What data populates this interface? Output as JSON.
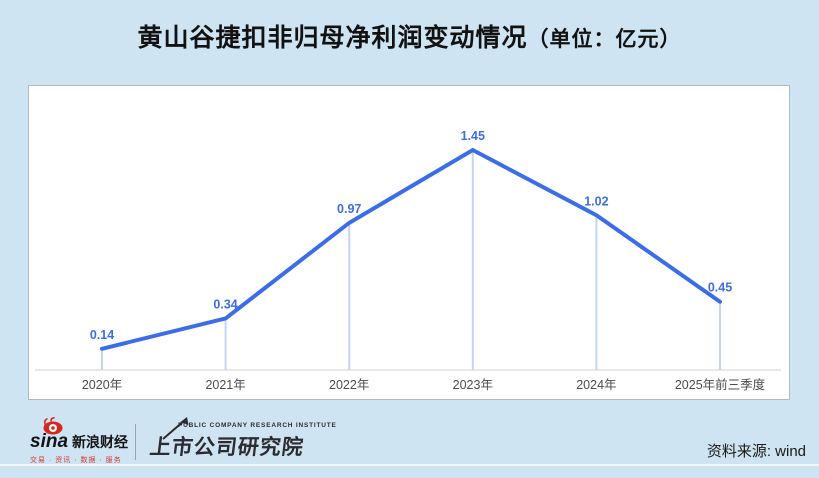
{
  "header": {
    "title_main": "黄山谷捷扣非归母净利润变动情况",
    "title_unit": "（单位：亿元）"
  },
  "chart_data": {
    "type": "line",
    "title": "黄山谷捷扣非归母净利润变动情况（单位：亿元）",
    "unit": "亿元",
    "categories": [
      "2020年",
      "2021年",
      "2022年",
      "2023年",
      "2024年",
      "2025年前三季度"
    ],
    "values": [
      0.14,
      0.34,
      0.97,
      1.45,
      1.02,
      0.45
    ],
    "xlabel": "",
    "ylabel": "",
    "ylim": [
      0,
      1.6
    ],
    "grid": false,
    "legend": "none",
    "colors": {
      "line": "#3c6de8",
      "value_label": "#3d6fe4",
      "dropline": "#c5d4f6",
      "axis": "#d9d9d9",
      "tick_label": "#4d4d4d",
      "panel_bg": "#ffffff"
    }
  },
  "footer": {
    "sina": {
      "brand": "sina",
      "name": "新浪财经",
      "tagline": "交易 · 资讯 · 数据 · 服务"
    },
    "institute": {
      "en": "PUBLIC COMPANY RESEARCH INSTITUTE",
      "cn": "上市公司研究院"
    },
    "source_label": "资料来源: wind"
  },
  "page": {
    "background": "#cfe4f3"
  }
}
